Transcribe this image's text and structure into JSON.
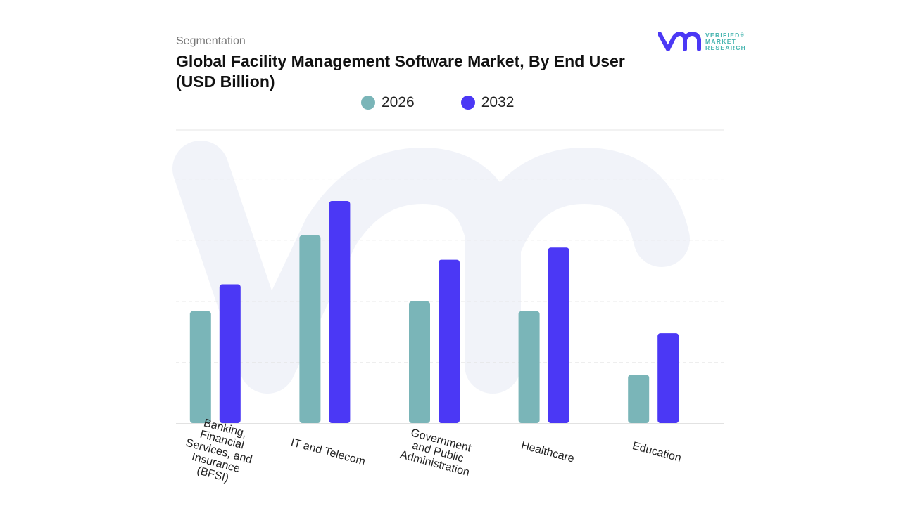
{
  "header": {
    "segment": "Segmentation",
    "title": "Global Facility Management Software Market, By End User (USD Billion)"
  },
  "logo": {
    "line1": "VERIFIED",
    "line2": "MARKET",
    "line3": "RESEARCH",
    "registered": "®"
  },
  "colors": {
    "series2026": "#7ab5b8",
    "series2032": "#4b38f5",
    "watermark": "#eef0f7"
  },
  "chart_data": {
    "type": "bar",
    "categories": [
      "Banking, Financial Services, and Insurance (BFSI)",
      "IT and Telecom",
      "Government and Public Administration",
      "Healthcare",
      "Education"
    ],
    "series": [
      {
        "name": "2026",
        "values": [
          4.6,
          7.7,
          5.0,
          4.6,
          2.0
        ]
      },
      {
        "name": "2032",
        "values": [
          5.7,
          9.1,
          6.7,
          7.2,
          3.7
        ]
      }
    ],
    "ylim": [
      0,
      12
    ],
    "grid": true,
    "legend": "top-center"
  }
}
